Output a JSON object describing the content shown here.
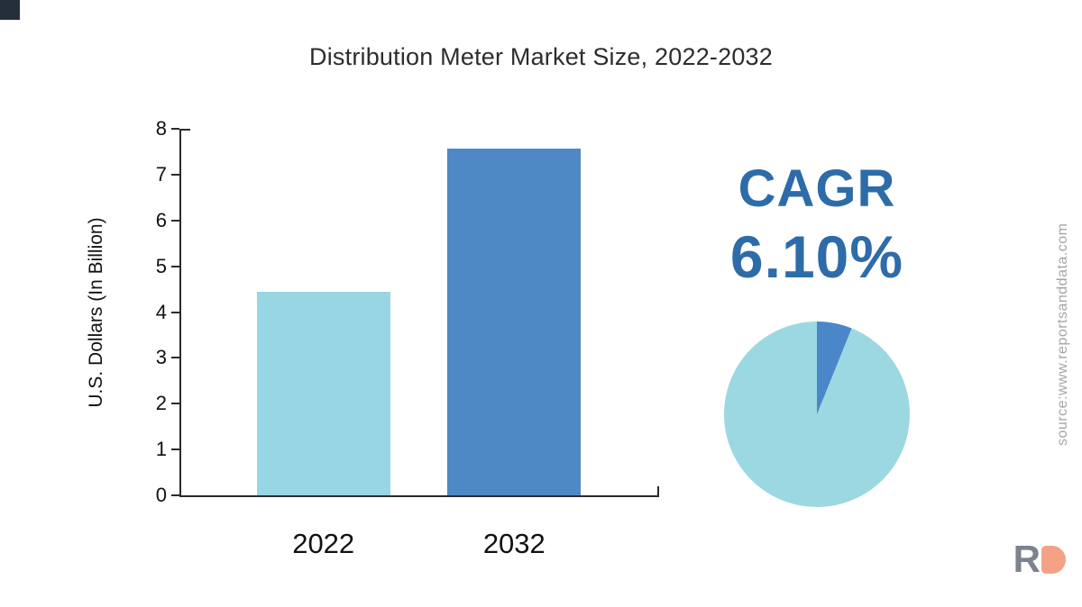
{
  "title": "Distribution Meter Market Size, 2022-2032",
  "chart_data": {
    "type": "bar",
    "categories": [
      "2022",
      "2032"
    ],
    "values": [
      4.45,
      7.57
    ],
    "series_colors": [
      "#98d6e3",
      "#4f89c5"
    ],
    "title": "Distribution Meter Market Size, 2022-2032",
    "xlabel": "",
    "ylabel": "U.S. Dollars (In Billion)",
    "ylim": [
      0,
      8
    ],
    "yticks": [
      0,
      1,
      2,
      3,
      4,
      5,
      6,
      7,
      8
    ],
    "grid": false,
    "legend": false
  },
  "cagr": {
    "label": "CAGR",
    "value": "6.10%",
    "color": "#2d6ca8"
  },
  "pie": {
    "wedge_percent": 6.1,
    "wedge_color": "#4a86c8",
    "body_color": "#9cd8e1"
  },
  "source": "source:www.reportsanddata.com",
  "logo": {
    "letter": "R",
    "letter_color": "#7b838e",
    "shape_color": "#f3a286"
  },
  "accents": {
    "corner_color": "#242f3b",
    "axis_color": "#2b2b2b"
  }
}
